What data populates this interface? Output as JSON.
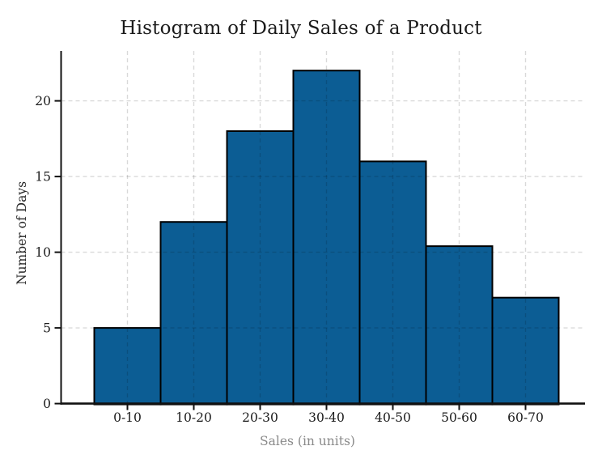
{
  "figure": {
    "background": "#ffffff"
  },
  "chart_data": {
    "type": "bar",
    "subtype": "histogram",
    "title": "Histogram of Daily Sales of a Product",
    "xlabel": "Sales (in units)",
    "ylabel": "Number of Days",
    "categories": [
      "0-10",
      "10-20",
      "20-30",
      "30-40",
      "40-50",
      "50-60",
      "60-70"
    ],
    "values": [
      5,
      12,
      18,
      22,
      16,
      10.4,
      7
    ],
    "yticks": [
      0,
      5,
      10,
      15,
      20
    ],
    "ylim": [
      0,
      23.3
    ],
    "grid": "dashed-both-axes-on-top",
    "legend": "none",
    "colors": {
      "bar_fill": "#0c5d94",
      "bar_edge": "#000000",
      "grid": "#d9d9d9",
      "spine": "#111111",
      "tick_label": "#1a1a1a",
      "ylabel_color": "#262626",
      "xlabel_color": "#8a8a8a"
    }
  }
}
